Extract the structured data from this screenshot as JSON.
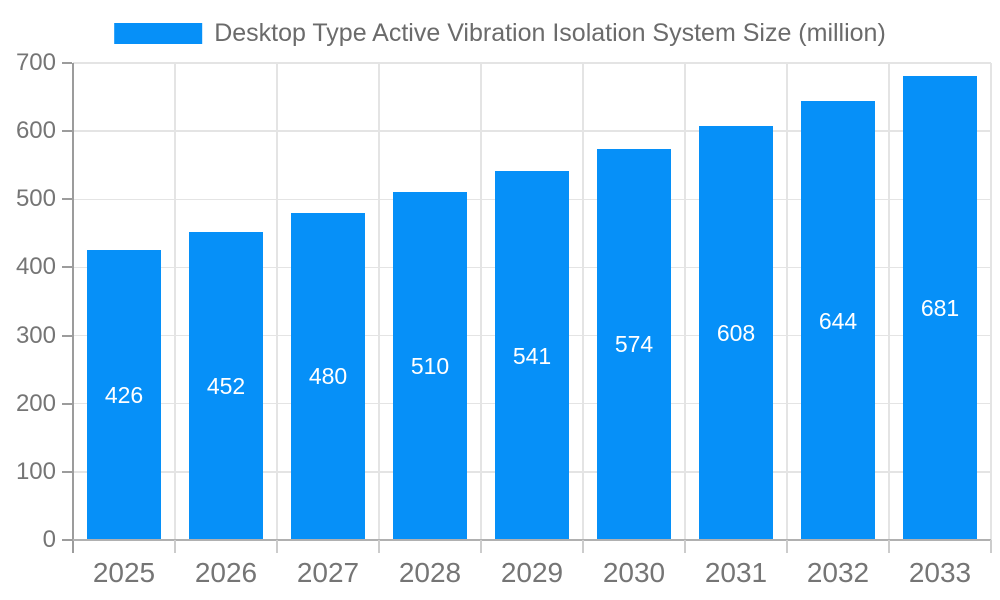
{
  "chart_data": {
    "type": "bar",
    "title": "Desktop Type Active Vibration Isolation System Size (million)",
    "categories": [
      "2025",
      "2026",
      "2027",
      "2028",
      "2029",
      "2030",
      "2031",
      "2032",
      "2033"
    ],
    "values": [
      426,
      452,
      480,
      510,
      541,
      574,
      608,
      644,
      681
    ],
    "series": [
      {
        "name": "Desktop Type Active Vibration Isolation System Size (million)",
        "values": [
          426,
          452,
          480,
          510,
          541,
          574,
          608,
          644,
          681
        ]
      }
    ],
    "xlabel": "",
    "ylabel": "",
    "ylim": [
      0,
      700
    ],
    "yticks": [
      0,
      100,
      200,
      300,
      400,
      500,
      600,
      700
    ],
    "grid": true,
    "legend_position": "top-center",
    "bar_color": "#0690f8",
    "bar_value_label_color": "#ffffff",
    "axis_tick_label_color": "#757575",
    "legend_text_color": "#6b6b6b",
    "gridline_color": "#e4e4e4",
    "axis_line_color": "#9c9c9c",
    "background_color": "#ffffff"
  }
}
